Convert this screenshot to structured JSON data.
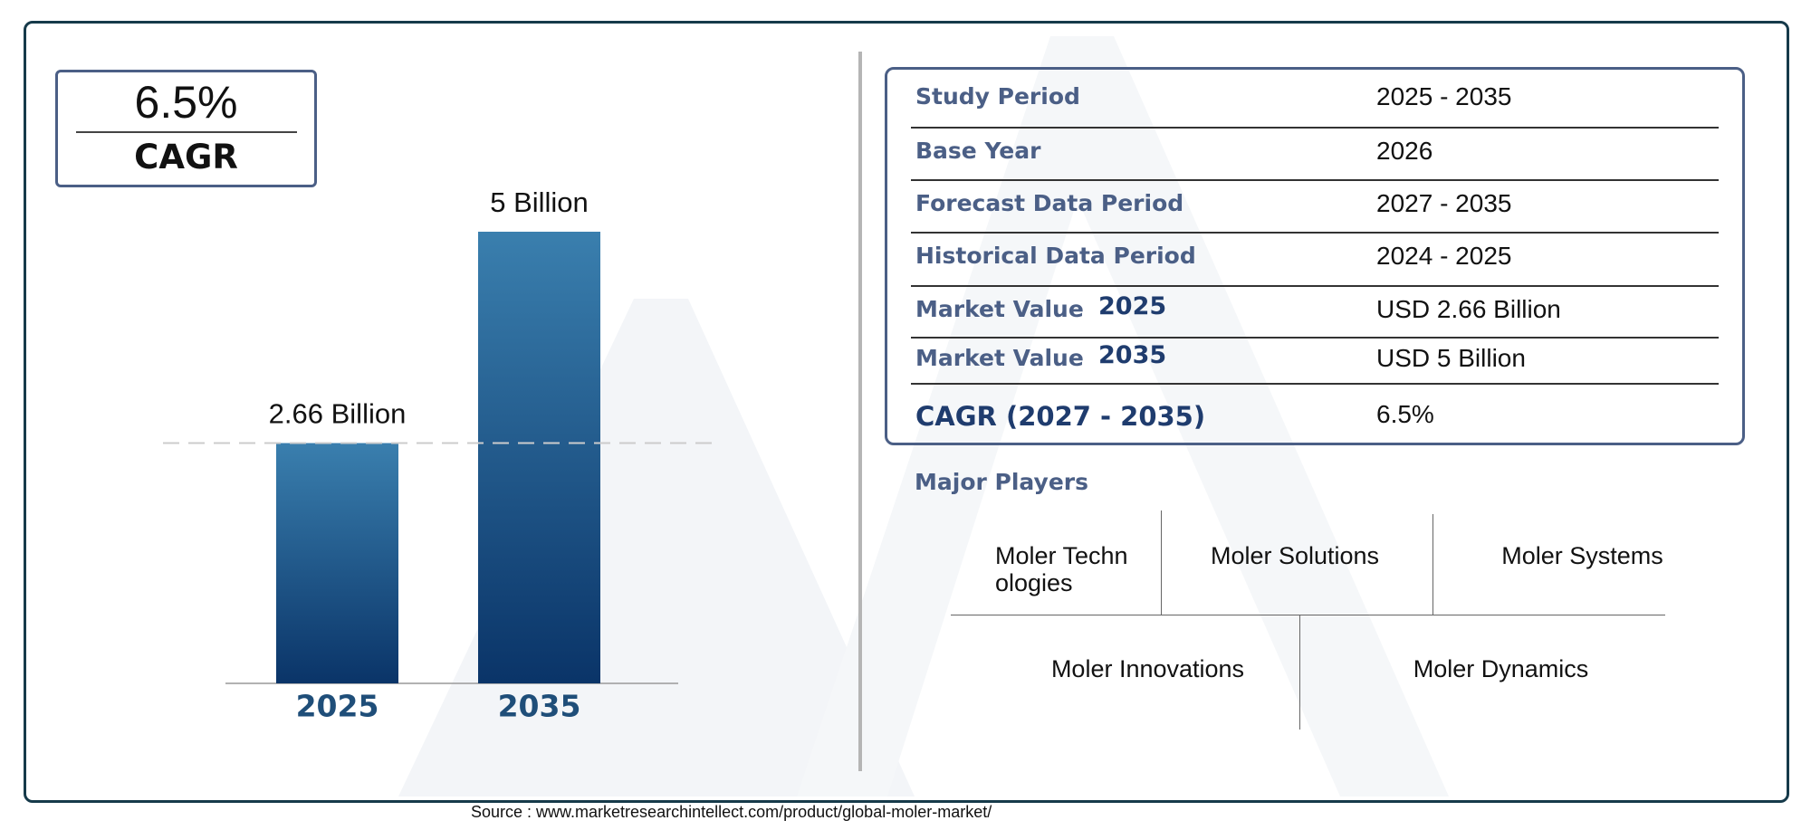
{
  "chart_data": {
    "type": "bar",
    "categories": [
      "2025",
      "2035"
    ],
    "values": [
      2.66,
      5
    ],
    "value_labels": [
      "2.66 Billion",
      "5 Billion"
    ],
    "colors": [
      "#3a7fae",
      "#0a3468"
    ]
  },
  "cagr_badge": {
    "value": "6.5%",
    "label": "CAGR"
  },
  "table": {
    "rows": [
      {
        "label": "Study Period",
        "value": "2025 - 2035"
      },
      {
        "label": "Base Year",
        "value": "2026"
      },
      {
        "label": "Forecast Data Period",
        "value": "2027 - 2035"
      },
      {
        "label": "Historical Data Period",
        "value": "2024 - 2025"
      },
      {
        "label": "Market Value",
        "year": "2025",
        "value": "USD 2.66 Billion"
      },
      {
        "label": "Market Value",
        "year": "2035",
        "value": "USD 5 Billion"
      },
      {
        "label": "CAGR (2027 - 2035)",
        "value": "6.5%"
      }
    ]
  },
  "major_players": {
    "title": "Major Players",
    "players": [
      "Moler Technologies",
      "Moler Solutions",
      "Moler Systems",
      "Moler Innovations",
      "Moler Dynamics"
    ]
  },
  "source": "Source : www.marketresearchintellect.com/product/global-moler-market/"
}
